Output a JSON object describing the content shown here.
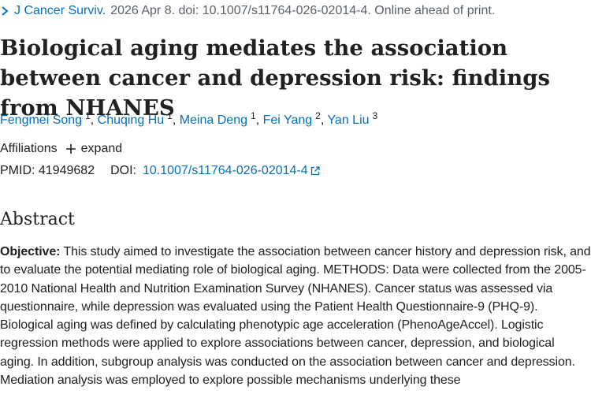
{
  "citation": {
    "journal": "J Cancer Surviv.",
    "details": "2026 Apr 8. doi: 10.1007/s11764-026-02014-4. Online ahead of print."
  },
  "title": "Biological aging mediates the association between cancer and depression risk: findings from NHANES",
  "authors": [
    {
      "name": "Fengmei Song",
      "aff": "1"
    },
    {
      "name": "Chuqing Hu",
      "aff": "1"
    },
    {
      "name": "Meina Deng",
      "aff": "1"
    },
    {
      "name": "Fei Yang",
      "aff": "2"
    },
    {
      "name": "Yan Liu",
      "aff": "3"
    }
  ],
  "affiliations": {
    "label": "Affiliations",
    "expand_label": "expand"
  },
  "ids": {
    "pmid_label": "PMID:",
    "pmid": "41949682",
    "doi_label": "DOI:",
    "doi": "10.1007/s11764-026-02014-4"
  },
  "abstract": {
    "heading": "Abstract",
    "objective_label": "Objective:",
    "text": "This study aimed to investigate the association between cancer history and depression risk, and to evaluate the potential mediating role of biological aging. METHODS: Data were collected from the 2005-2010 National Health and Nutrition Examination Survey (NHANES). Cancer status was assessed via questionnaire, while depression was evaluated using the Patient Health Questionnaire-9 (PHQ-9). Biological aging was defined by calculating phenotypic age acceleration (PhenoAgeAccel). Logistic regression methods were applied to explore associations between cancer, depression, and biological aging. In addition, subgroup analysis was conducted on the association between cancer and depression. Mediation analysis was employed to explore possible mechanisms underlying these"
  },
  "colors": {
    "link": "#0071bc",
    "text": "#212121",
    "muted": "#5b616b"
  }
}
